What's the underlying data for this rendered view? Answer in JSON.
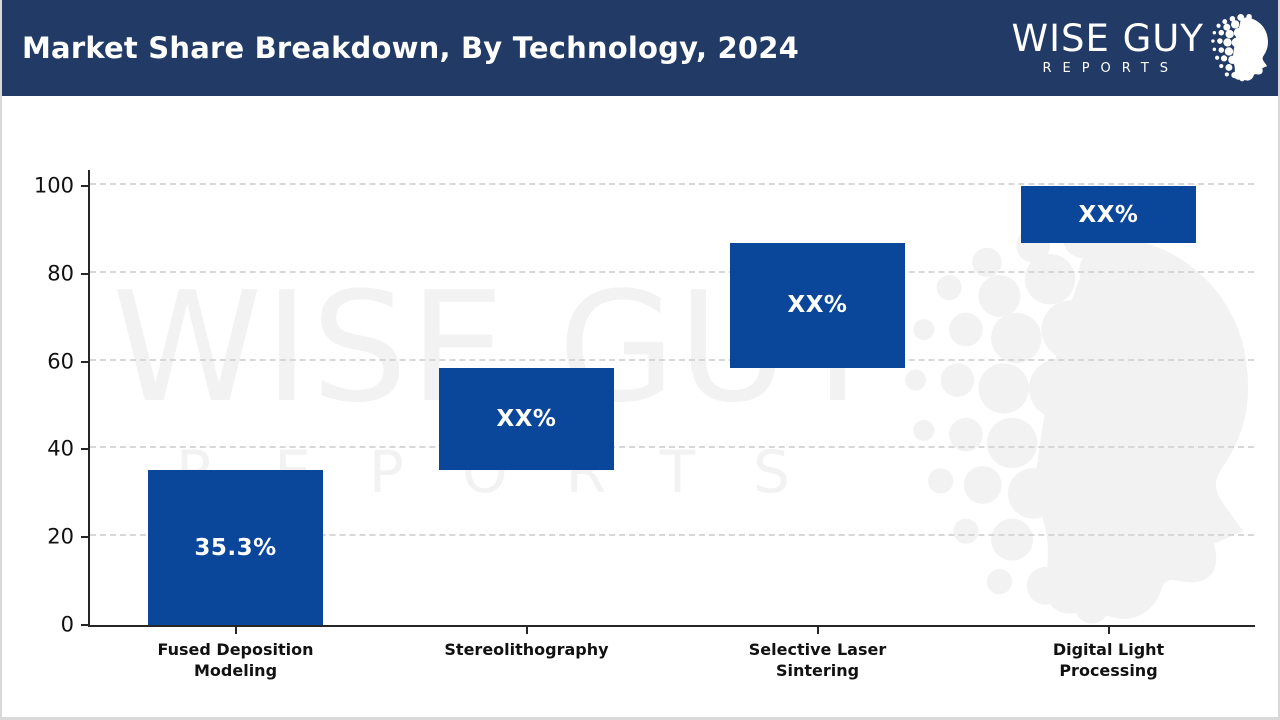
{
  "header": {
    "title": "Market Share Breakdown, By Technology, 2024",
    "bg_color": "#213a66",
    "logo": {
      "wordmark": "WISE GUY",
      "subtext": "REPORTS"
    }
  },
  "watermark": {
    "wordmark": "WISE GUY",
    "subtext": "REPORTS"
  },
  "chart_data": {
    "type": "bar",
    "subtype": "waterfall",
    "title": "Market Share Breakdown, By Technology, 2024",
    "categories": [
      "Fused Deposition\nModeling",
      "Stereolithography",
      "Selective Laser\nSintering",
      "Digital Light\nProcessing"
    ],
    "segments": [
      {
        "start": 0,
        "end": 35.3
      },
      {
        "start": 35.3,
        "end": 58.6
      },
      {
        "start": 58.6,
        "end": 87.0
      },
      {
        "start": 87.0,
        "end": 100.0
      }
    ],
    "values": [
      35.3,
      23.3,
      28.4,
      13.0
    ],
    "bar_labels": [
      "35.3%",
      "XX%",
      "XX%",
      "XX%"
    ],
    "bar_color": "#0a4699",
    "bar_label_color": "#ffffff",
    "ylim": [
      0,
      100
    ],
    "yticks": [
      0,
      20,
      40,
      60,
      80,
      100
    ],
    "grid": "horizontal-dashed",
    "legend": "none",
    "xlabel": "",
    "ylabel": ""
  }
}
